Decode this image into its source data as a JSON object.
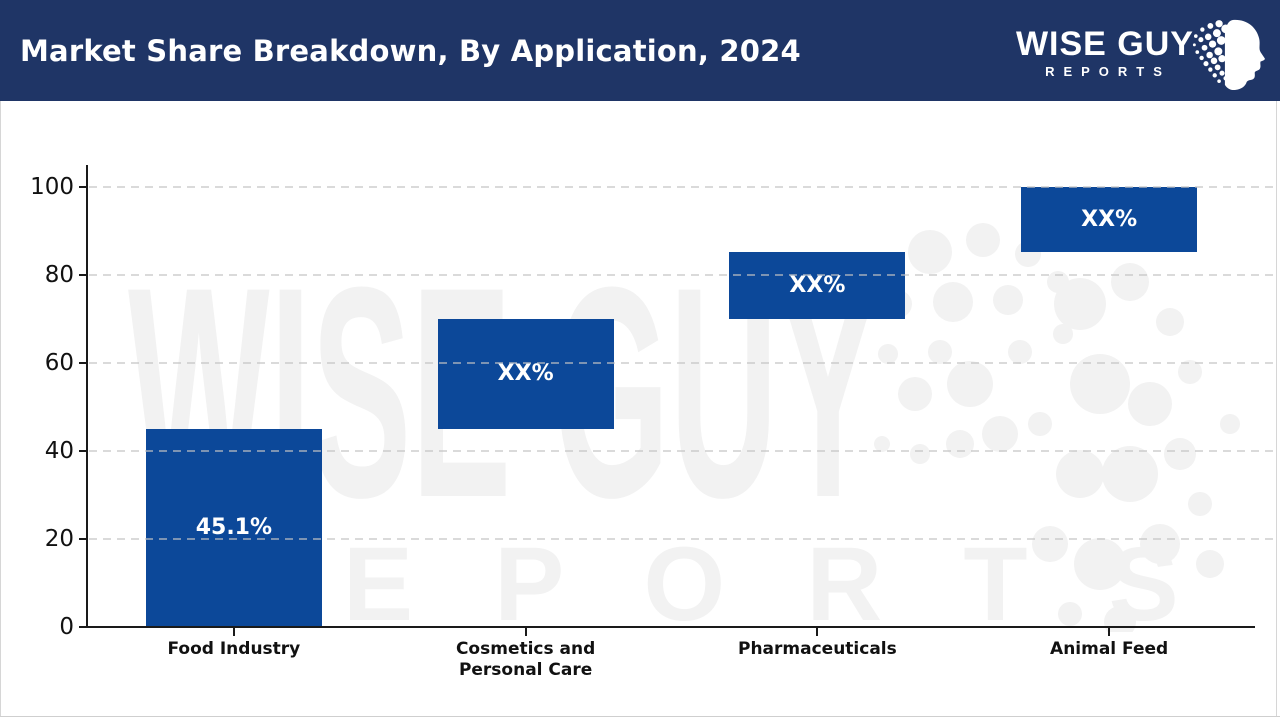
{
  "header": {
    "title": "Market Share Breakdown, By Application, 2024",
    "background_color": "#1f3566",
    "logo": {
      "wordmark": "WISE GUY",
      "subtext": "REPORTS"
    }
  },
  "watermark": {
    "line1": "WISE GUY",
    "line2": "R E P O R T S"
  },
  "chart_data": {
    "type": "bar",
    "subtype": "floating-waterfall",
    "title": "Market Share Breakdown, By Application, 2024",
    "categories": [
      "Food Industry",
      "Cosmetics and Personal Care",
      "Pharmaceuticals",
      "Animal Feed"
    ],
    "category_label_lines": [
      [
        "Food Industry"
      ],
      [
        "Cosmetics and",
        "Personal Care"
      ],
      [
        "Pharmaceuticals"
      ],
      [
        "Animal Feed"
      ]
    ],
    "segments": [
      {
        "category": "Food Industry",
        "start": 0,
        "end": 45.1,
        "label": "45.1%"
      },
      {
        "category": "Cosmetics and Personal Care",
        "start": 45.1,
        "end": 70,
        "label": "XX%"
      },
      {
        "category": "Pharmaceuticals",
        "start": 70,
        "end": 85.2,
        "label": "XX%"
      },
      {
        "category": "Animal Feed",
        "start": 85.2,
        "end": 100,
        "label": "XX%"
      }
    ],
    "ylim": [
      0,
      105
    ],
    "yticks": [
      0,
      20,
      40,
      60,
      80,
      100
    ],
    "grid": {
      "horizontal": true,
      "style": "dashed",
      "color": "#dcdcdc"
    },
    "bar_color": "#0c4899",
    "bar_label_color": "#ffffff",
    "axis_color": "#1a1a1a",
    "legend": false
  },
  "colors": {
    "watermark": "#f2f2f2",
    "frame_border": "#d6d6d6"
  }
}
